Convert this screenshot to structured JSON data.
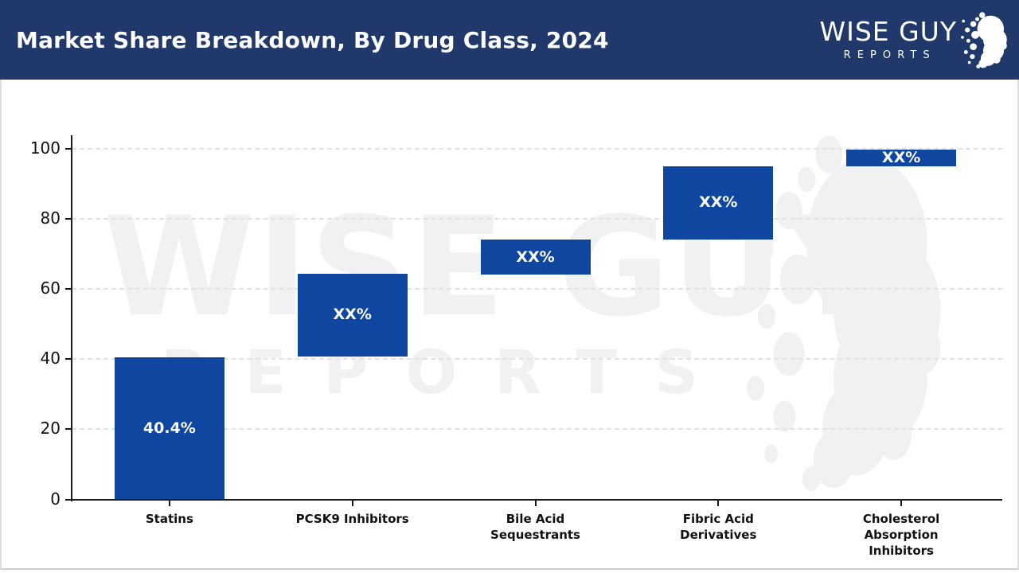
{
  "header": {
    "title": "Market Share Breakdown, By Drug Class, 2024",
    "logo": {
      "name": "WISE GUY",
      "sub": "REPORTS"
    }
  },
  "watermark": {
    "name": "WISE GUY",
    "sub": "REPORTS"
  },
  "colors": {
    "header_bg": "#21386B",
    "bar": "#0E46A0",
    "grid": "#e2e2e2",
    "axis": "#1a1a1a",
    "watermark": "#f1f1f4",
    "bar_label": "#ffffff"
  },
  "chart_data": {
    "type": "bar",
    "subtype": "floating-segment (waterfall style)",
    "title": "Market Share Breakdown, By Drug Class, 2024",
    "xlabel": "",
    "ylabel": "",
    "ylim": [
      0,
      100
    ],
    "yticks": [
      0,
      20,
      40,
      60,
      80,
      100
    ],
    "grid": "horizontal dashed",
    "legend": "none",
    "bar_color": "#0E46A0",
    "categories": [
      "Statins",
      "PCSK9 Inhibitors",
      "Bile Acid\nSequestrants",
      "Fibric Acid\nDerivatives",
      "Cholesterol\nAbsorption\nInhibitors"
    ],
    "series": [
      {
        "name": "Market share (%)",
        "segments": [
          {
            "category": "Statins",
            "from": 0,
            "to": 40.4,
            "label": "40.4%"
          },
          {
            "category": "PCSK9 Inhibitors",
            "from": 40.8,
            "to": 64.3,
            "label": "XX%"
          },
          {
            "category": "Bile Acid Sequestrants",
            "from": 64.0,
            "to": 74.0,
            "label": "XX%"
          },
          {
            "category": "Fibric Acid Derivatives",
            "from": 74.0,
            "to": 95.0,
            "label": "XX%"
          },
          {
            "category": "Cholesterol Absorption Inhibitors",
            "from": 95.0,
            "to": 99.6,
            "label": "XX%"
          }
        ]
      }
    ]
  }
}
